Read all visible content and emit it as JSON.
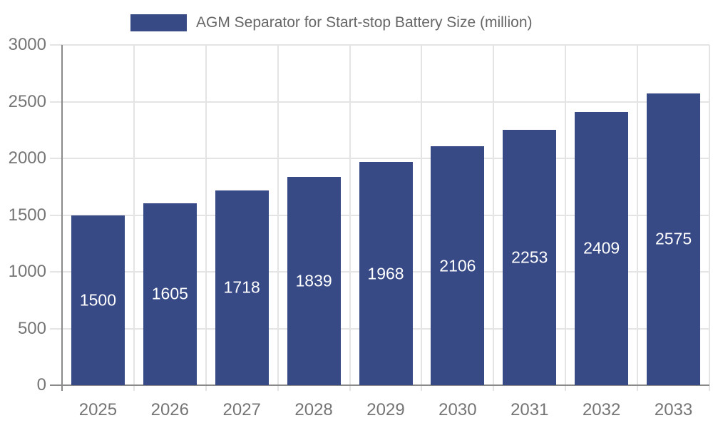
{
  "legend": {
    "label": "AGM Separator for Start-stop Battery Size (million)"
  },
  "chart_data": {
    "type": "bar",
    "title": "AGM Separator for Start-stop Battery Size (million)",
    "series_name": "AGM Separator for Start-stop Battery Size (million)",
    "categories": [
      "2025",
      "2026",
      "2027",
      "2028",
      "2029",
      "2030",
      "2031",
      "2032",
      "2033"
    ],
    "values": [
      1500,
      1605,
      1718,
      1839,
      1968,
      2106,
      2253,
      2409,
      2575
    ],
    "value_labels": [
      "1500",
      "1605",
      "1718",
      "1839",
      "1968",
      "2106",
      "2253",
      "2409",
      "2575"
    ],
    "xlabel": "",
    "ylabel": "",
    "ylim": [
      0,
      3000
    ],
    "yticks": [
      0,
      500,
      1000,
      1500,
      2000,
      2500,
      3000
    ],
    "grid": true,
    "legend_position": "top-left",
    "value_labels_position": "inside-center"
  },
  "colors": {
    "bar": "#374a85",
    "grid": "#e4e4e4",
    "axis": "#8a8a8a",
    "tick_label": "#757575",
    "legend_text": "#666666",
    "value_label": "#ffffff",
    "background": "#ffffff"
  }
}
